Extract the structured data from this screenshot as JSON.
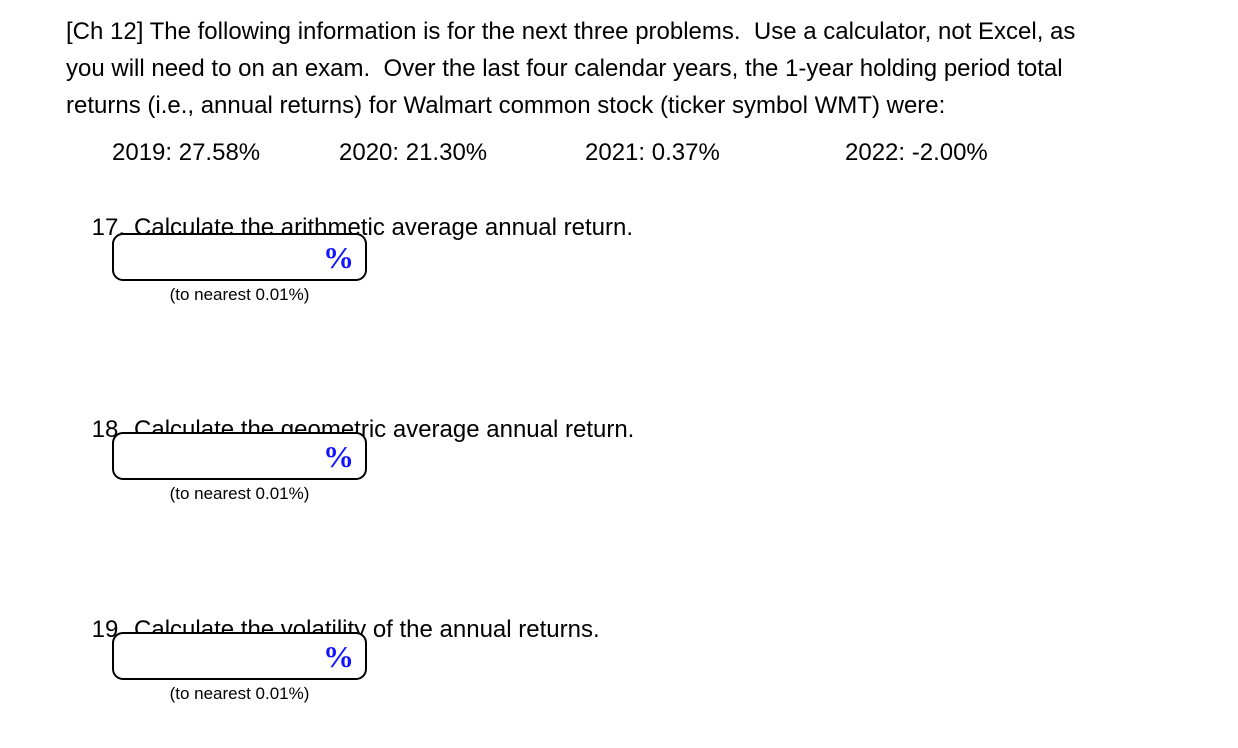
{
  "page": {
    "background": "#ffffff",
    "text_color": "#000000",
    "accent_blue": "#1414ff"
  },
  "intro": {
    "lines": [
      "[Ch 12] The following information is for the next three problems.  Use a calculator, not Excel, as",
      "you will need to on an exam.  Over the last four calendar years, the 1-year holding period total",
      "returns (i.e., annual returns) for Walmart common stock (ticker symbol WMT) were:"
    ]
  },
  "returns": {
    "items": [
      {
        "year": "2019",
        "value": "27.58%",
        "label": "2019: 27.58%"
      },
      {
        "year": "2020",
        "value": "21.30%",
        "label": "2020: 21.30%"
      },
      {
        "year": "2021",
        "value": "0.37%",
        "label": "2021: 0.37%"
      },
      {
        "year": "2022",
        "value": "-2.00%",
        "label": "2022: -2.00%"
      }
    ]
  },
  "questions": [
    {
      "number": "17.",
      "text": "Calculate the arithmetic average annual return.",
      "input_value": "",
      "unit": "%",
      "hint": "(to nearest 0.01%)"
    },
    {
      "number": "18.",
      "text": "Calculate the geometric average annual return.",
      "input_value": "",
      "unit": "%",
      "hint": "(to nearest 0.01%)"
    },
    {
      "number": "19.",
      "text": "Calculate the volatility of the annual returns.",
      "input_value": "",
      "unit": "%",
      "hint": "(to nearest 0.01%)"
    }
  ]
}
